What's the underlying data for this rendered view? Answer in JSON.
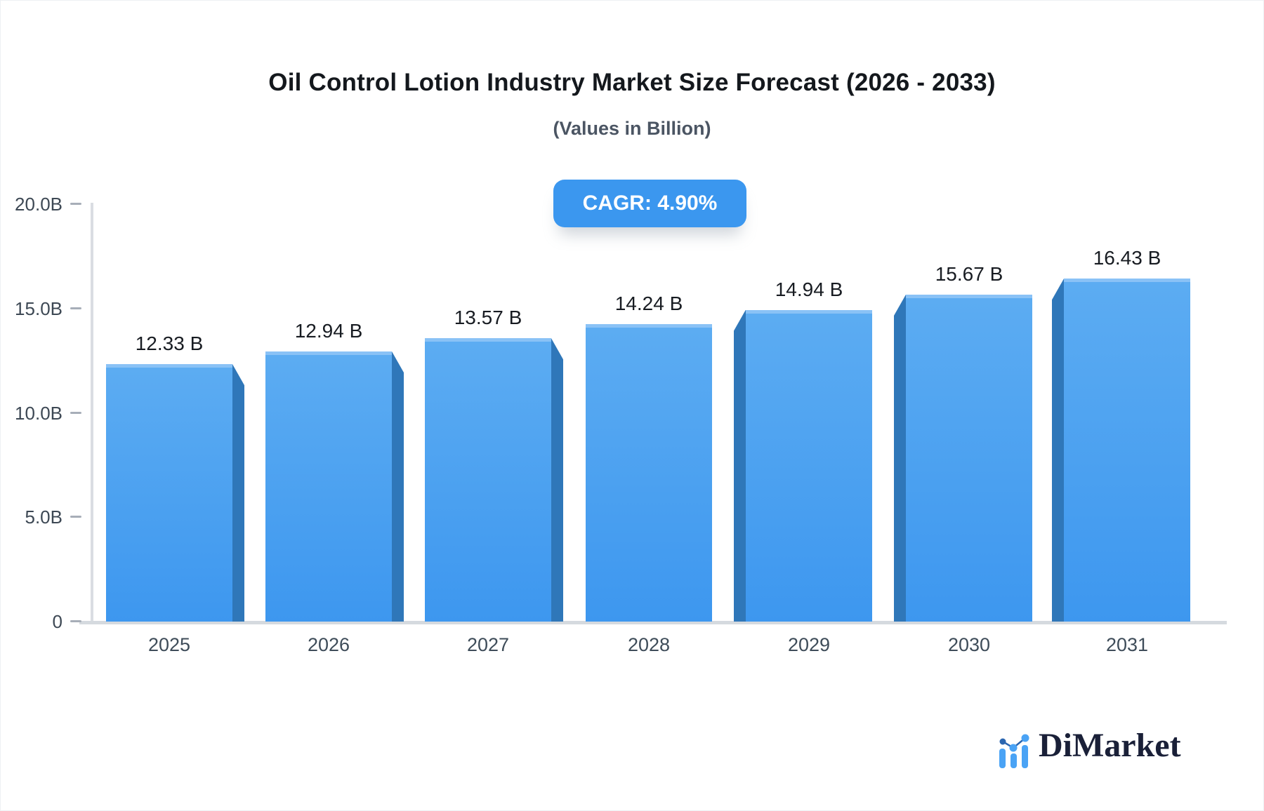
{
  "badge": {
    "label": "CAGR: 4.90%",
    "bg_color": "#3b97ef",
    "text_color": "#ffffff"
  },
  "chart_data": {
    "type": "bar",
    "title": "Oil Control Lotion Industry Market Size Forecast (2026 - 2033)",
    "subtitle": "(Values in Billion)",
    "categories": [
      "2025",
      "2026",
      "2027",
      "2028",
      "2029",
      "2030",
      "2031"
    ],
    "values": [
      12.33,
      12.94,
      13.57,
      14.24,
      14.94,
      15.67,
      16.43
    ],
    "value_labels": [
      "12.33 B",
      "12.94 B",
      "13.57 B",
      "14.24 B",
      "14.94 B",
      "15.67 B",
      "16.43 B"
    ],
    "xlabel": "",
    "ylabel": "",
    "ylim": [
      0,
      20
    ],
    "yticks": [
      {
        "value": 20,
        "label": "20.0B"
      },
      {
        "value": 15,
        "label": "15.0B"
      },
      {
        "value": 10,
        "label": "10.0B"
      },
      {
        "value": 5,
        "label": "5.0B"
      },
      {
        "value": 0,
        "label": "0"
      }
    ],
    "grid": false,
    "legend": "none",
    "bar_3d_sides": [
      "right",
      "right",
      "right",
      "none",
      "left",
      "left",
      "left"
    ],
    "colors": {
      "bar_face_top": "#5cacf2",
      "bar_face_bottom": "#3d97ef",
      "bar_top_edge": "#8ac2f6",
      "bar_side_face": "#2f77b9",
      "axis_line": "#dadde2",
      "tick_text": "#3d4854"
    }
  },
  "logo": {
    "text": "DiMarket",
    "icon": "bar-line-chart-icon",
    "icon_color": "#4aa3f5",
    "icon_line_color": "#2b66b0",
    "text_color": "#1a2038"
  }
}
